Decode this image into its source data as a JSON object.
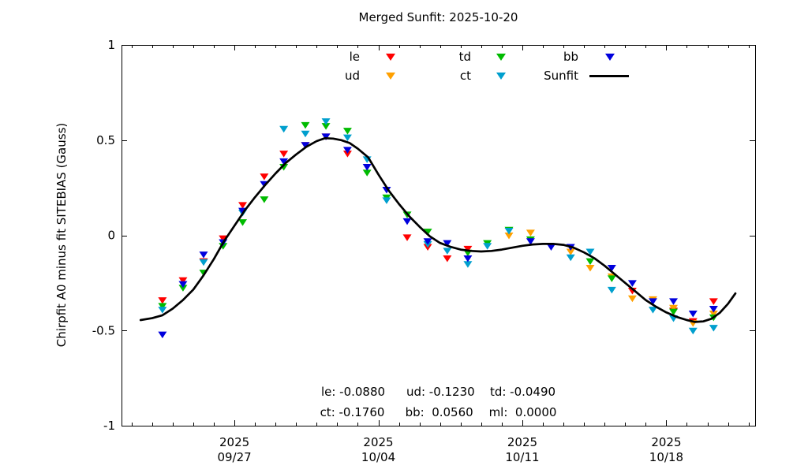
{
  "title": "Merged Sunfit: 2025-10-20",
  "ylabel": "Chirpfit A0 minus fit SITEBIAS (Gauss)",
  "legend": {
    "entries": [
      {
        "label": "le",
        "color": "#ff0000",
        "marker": "triangle-down"
      },
      {
        "label": "ud",
        "color": "#ffa000",
        "marker": "triangle-down"
      },
      {
        "label": "td",
        "color": "#00bb00",
        "marker": "triangle-down"
      },
      {
        "label": "ct",
        "color": "#009fce",
        "marker": "triangle-down"
      },
      {
        "label": "bb",
        "color": "#0000dd",
        "marker": "triangle-down"
      },
      {
        "label": "Sunfit",
        "color": "#000000",
        "marker": "line"
      }
    ]
  },
  "annotation": {
    "le": "le: -0.0880",
    "ud": "ud: -0.1230",
    "td": "td: -0.0490",
    "ct": "ct: -0.1760",
    "bb": "bb:  0.0560",
    "ml": "ml:  0.0000"
  },
  "chart_data": {
    "type": "scatter",
    "title": "Merged Sunfit: 2025-10-20",
    "xlabel": "",
    "ylabel": "Chirpfit A0 minus fit SITEBIAS (Gauss)",
    "grid": false,
    "legend_position": "top-center-inside",
    "x_axis": {
      "encoding": "days relative to 2025-09-27",
      "range_days": [
        -5.49,
        25.32
      ],
      "minor_tick_every_days": 1,
      "major_ticks": [
        {
          "day": 0,
          "line1": "2025",
          "line2": "09/27"
        },
        {
          "day": 7,
          "line1": "2025",
          "line2": "10/04"
        },
        {
          "day": 14,
          "line1": "2025",
          "line2": "10/11"
        },
        {
          "day": 21,
          "line1": "2025",
          "line2": "10/18"
        }
      ]
    },
    "y_axis": {
      "range": [
        -1,
        1
      ],
      "ticks": [
        {
          "v": 1,
          "label": "1"
        },
        {
          "v": 0.5,
          "label": "0.5"
        },
        {
          "v": 0,
          "label": "0"
        },
        {
          "v": -0.5,
          "label": "-0.5"
        },
        {
          "v": -1,
          "label": "-1"
        }
      ]
    },
    "series": [
      {
        "name": "le",
        "color": "#ff0000",
        "points": [
          [
            -3.5,
            -0.34
          ],
          [
            -2.5,
            -0.235
          ],
          [
            -1.5,
            -0.135
          ],
          [
            -0.55,
            -0.015
          ],
          [
            0.4,
            0.16
          ],
          [
            1.45,
            0.31
          ],
          [
            2.4,
            0.43
          ],
          [
            3.45,
            0.475
          ],
          [
            4.45,
            0.52
          ],
          [
            5.5,
            0.43
          ],
          [
            8.4,
            -0.01
          ],
          [
            9.4,
            -0.06
          ],
          [
            10.35,
            -0.12
          ],
          [
            11.35,
            -0.07
          ],
          [
            19.35,
            -0.29
          ],
          [
            21.35,
            -0.395
          ],
          [
            22.3,
            -0.45
          ],
          [
            23.3,
            -0.345
          ]
        ]
      },
      {
        "name": "ud",
        "color": "#ffa000",
        "points": [
          [
            13.35,
            0.0
          ],
          [
            14.4,
            0.015
          ],
          [
            16.35,
            -0.085
          ],
          [
            17.3,
            -0.17
          ],
          [
            18.35,
            -0.215
          ],
          [
            19.35,
            -0.33
          ],
          [
            20.35,
            -0.335
          ],
          [
            21.35,
            -0.38
          ],
          [
            22.3,
            -0.46
          ],
          [
            23.3,
            -0.41
          ]
        ]
      },
      {
        "name": "td",
        "color": "#00bb00",
        "points": [
          [
            -3.5,
            -0.37
          ],
          [
            -2.5,
            -0.275
          ],
          [
            -1.5,
            -0.195
          ],
          [
            -0.55,
            -0.055
          ],
          [
            0.4,
            0.07
          ],
          [
            1.45,
            0.19
          ],
          [
            2.4,
            0.36
          ],
          [
            3.45,
            0.58
          ],
          [
            4.45,
            0.575
          ],
          [
            5.5,
            0.55
          ],
          [
            6.45,
            0.33
          ],
          [
            7.4,
            0.2
          ],
          [
            8.4,
            0.11
          ],
          [
            9.4,
            0.02
          ],
          [
            11.35,
            -0.09
          ],
          [
            12.3,
            -0.04
          ],
          [
            13.35,
            0.03
          ],
          [
            14.4,
            -0.02
          ],
          [
            17.3,
            -0.135
          ],
          [
            18.35,
            -0.225
          ],
          [
            21.35,
            -0.4
          ],
          [
            23.3,
            -0.43
          ]
        ]
      },
      {
        "name": "ct",
        "color": "#009fce",
        "points": [
          [
            -3.5,
            -0.39
          ],
          [
            -1.5,
            -0.14
          ],
          [
            0.4,
            0.12
          ],
          [
            2.4,
            0.56
          ],
          [
            3.45,
            0.535
          ],
          [
            4.45,
            0.6
          ],
          [
            5.5,
            0.515
          ],
          [
            6.45,
            0.4
          ],
          [
            7.4,
            0.185
          ],
          [
            9.4,
            -0.045
          ],
          [
            10.35,
            -0.08
          ],
          [
            11.35,
            -0.15
          ],
          [
            12.3,
            -0.055
          ],
          [
            13.35,
            0.025
          ],
          [
            16.35,
            -0.115
          ],
          [
            17.3,
            -0.085
          ],
          [
            18.35,
            -0.285
          ],
          [
            20.35,
            -0.39
          ],
          [
            21.35,
            -0.435
          ],
          [
            22.3,
            -0.5
          ],
          [
            23.3,
            -0.485
          ]
        ]
      },
      {
        "name": "bb",
        "color": "#0000dd",
        "points": [
          [
            -3.5,
            -0.52
          ],
          [
            -2.5,
            -0.255
          ],
          [
            -1.5,
            -0.1
          ],
          [
            -0.55,
            -0.035
          ],
          [
            0.4,
            0.13
          ],
          [
            1.45,
            0.27
          ],
          [
            2.4,
            0.39
          ],
          [
            3.45,
            0.475
          ],
          [
            4.45,
            0.52
          ],
          [
            5.5,
            0.45
          ],
          [
            6.45,
            0.36
          ],
          [
            7.4,
            0.24
          ],
          [
            8.4,
            0.075
          ],
          [
            9.4,
            -0.03
          ],
          [
            10.35,
            -0.04
          ],
          [
            11.35,
            -0.12
          ],
          [
            14.4,
            -0.03
          ],
          [
            15.4,
            -0.06
          ],
          [
            16.35,
            -0.06
          ],
          [
            18.35,
            -0.17
          ],
          [
            19.35,
            -0.25
          ],
          [
            20.35,
            -0.345
          ],
          [
            21.35,
            -0.345
          ],
          [
            22.3,
            -0.41
          ],
          [
            23.3,
            -0.385
          ]
        ]
      }
    ],
    "fit": {
      "name": "Sunfit",
      "color": "#000000",
      "points": [
        [
          -4.56,
          -0.445
        ],
        [
          -4,
          -0.435
        ],
        [
          -3.5,
          -0.42
        ],
        [
          -3,
          -0.385
        ],
        [
          -2.5,
          -0.34
        ],
        [
          -2,
          -0.285
        ],
        [
          -1.5,
          -0.21
        ],
        [
          -1,
          -0.125
        ],
        [
          -0.5,
          -0.03
        ],
        [
          0,
          0.05
        ],
        [
          0.5,
          0.13
        ],
        [
          1,
          0.2
        ],
        [
          1.5,
          0.265
        ],
        [
          2,
          0.325
        ],
        [
          2.5,
          0.38
        ],
        [
          3,
          0.425
        ],
        [
          3.5,
          0.465
        ],
        [
          4,
          0.495
        ],
        [
          4.4,
          0.51
        ],
        [
          4.8,
          0.508
        ],
        [
          5.2,
          0.5
        ],
        [
          5.6,
          0.485
        ],
        [
          6,
          0.455
        ],
        [
          6.5,
          0.41
        ],
        [
          7,
          0.32
        ],
        [
          7.5,
          0.235
        ],
        [
          8,
          0.165
        ],
        [
          8.5,
          0.1
        ],
        [
          9,
          0.045
        ],
        [
          9.5,
          -0.005
        ],
        [
          10,
          -0.04
        ],
        [
          10.5,
          -0.06
        ],
        [
          11,
          -0.075
        ],
        [
          11.5,
          -0.082
        ],
        [
          12,
          -0.085
        ],
        [
          12.5,
          -0.082
        ],
        [
          13,
          -0.075
        ],
        [
          13.5,
          -0.065
        ],
        [
          14,
          -0.055
        ],
        [
          14.5,
          -0.048
        ],
        [
          15,
          -0.045
        ],
        [
          15.5,
          -0.045
        ],
        [
          16,
          -0.05
        ],
        [
          16.5,
          -0.065
        ],
        [
          17,
          -0.09
        ],
        [
          17.5,
          -0.12
        ],
        [
          18,
          -0.16
        ],
        [
          18.5,
          -0.205
        ],
        [
          19,
          -0.25
        ],
        [
          19.5,
          -0.295
        ],
        [
          20,
          -0.34
        ],
        [
          20.5,
          -0.375
        ],
        [
          21,
          -0.405
        ],
        [
          21.5,
          -0.428
        ],
        [
          22,
          -0.445
        ],
        [
          22.4,
          -0.455
        ],
        [
          22.8,
          -0.452
        ],
        [
          23.2,
          -0.438
        ],
        [
          23.6,
          -0.407
        ],
        [
          24,
          -0.36
        ],
        [
          24.36,
          -0.305
        ]
      ]
    },
    "fit_coefficients": {
      "le": -0.088,
      "ud": -0.123,
      "td": -0.049,
      "ct": -0.176,
      "bb": 0.056,
      "ml": 0.0
    }
  }
}
